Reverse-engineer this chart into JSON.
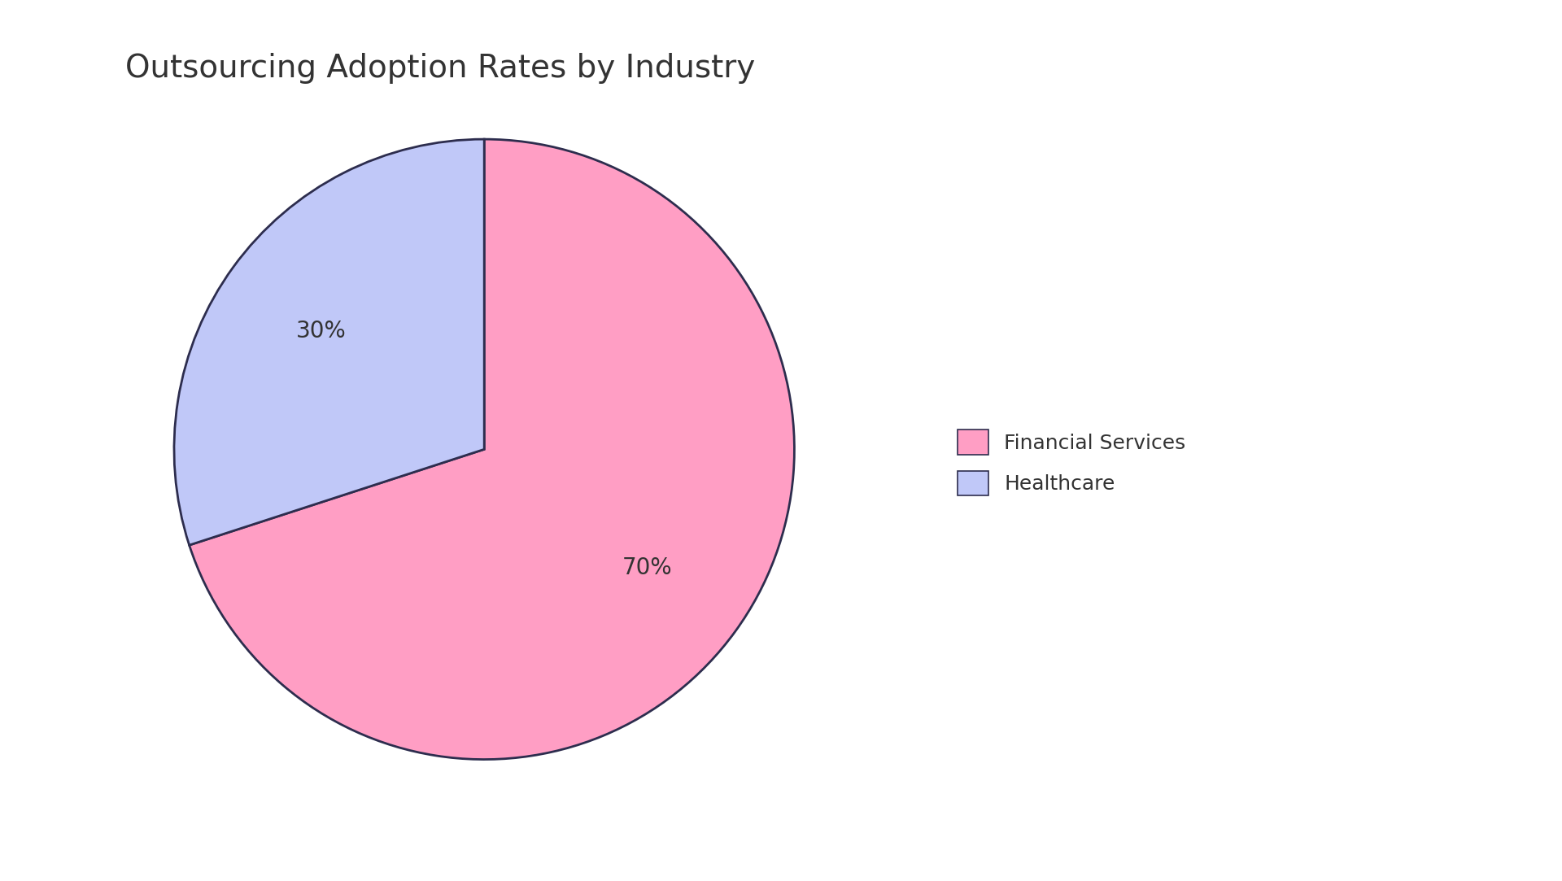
{
  "title": "Outsourcing Adoption Rates by Industry",
  "slices": [
    70,
    30
  ],
  "labels": [
    "Financial Services",
    "Healthcare"
  ],
  "colors": [
    "#FF9EC4",
    "#C0C8F8"
  ],
  "edge_color": "#2D2D4E",
  "edge_width": 2.0,
  "autopct_fontsize": 20,
  "legend_fontsize": 18,
  "title_fontsize": 28,
  "startangle": 90,
  "background_color": "#FFFFFF",
  "text_color": "#333333",
  "pct_distance": 0.65
}
